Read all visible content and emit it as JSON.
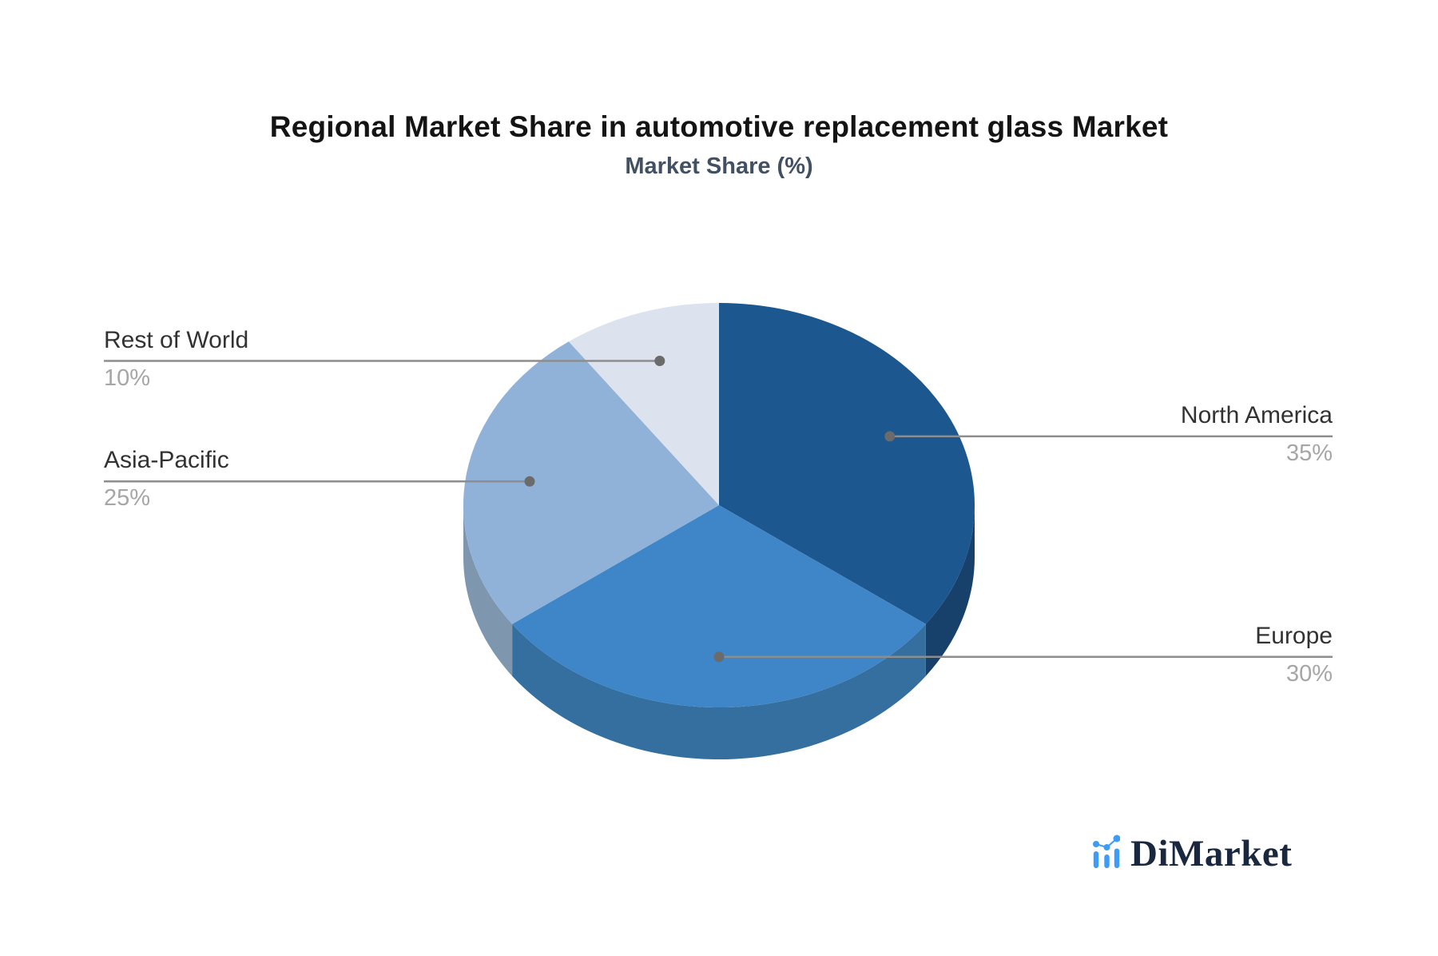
{
  "chart_data": {
    "type": "pie",
    "title": "Regional Market Share in automotive replacement glass Market",
    "subtitle": "Market Share (%)",
    "direction": "clockwise",
    "start_angle_deg": 0,
    "effect": "3d",
    "legend_position": "callouts",
    "categories": [
      "North America",
      "Europe",
      "Asia-Pacific",
      "Rest of World"
    ],
    "values": [
      35,
      30,
      25,
      10
    ],
    "slices": [
      {
        "label": "North America",
        "value": 35,
        "display": "35%",
        "color_top": "#1C5790",
        "color_side": "#17416B",
        "callout": "right"
      },
      {
        "label": "Europe",
        "value": 30,
        "display": "30%",
        "color_top": "#3E86C8",
        "color_side": "#346F9F",
        "callout": "right"
      },
      {
        "label": "Asia-Pacific",
        "value": 25,
        "display": "25%",
        "color_top": "#90B2D8",
        "color_side": "#7E96AE",
        "callout": "left"
      },
      {
        "label": "Rest of World",
        "value": 10,
        "display": "10%",
        "color_top": "#DCE3EE",
        "color_side": "#C3CDDC",
        "callout": "left"
      }
    ],
    "style": {
      "leader_line_color": "#8D8D8D",
      "leader_dot_color": "#6B6B6B",
      "label_color": "#323232",
      "value_color": "#A6A6A6",
      "title_color": "#141414",
      "subtitle_color": "#415063"
    }
  },
  "logo": {
    "text": "DiMarket",
    "icon": "bar-chart-trend-icon",
    "text_color": "#19273F",
    "icon_color": "#3F9CF5"
  }
}
